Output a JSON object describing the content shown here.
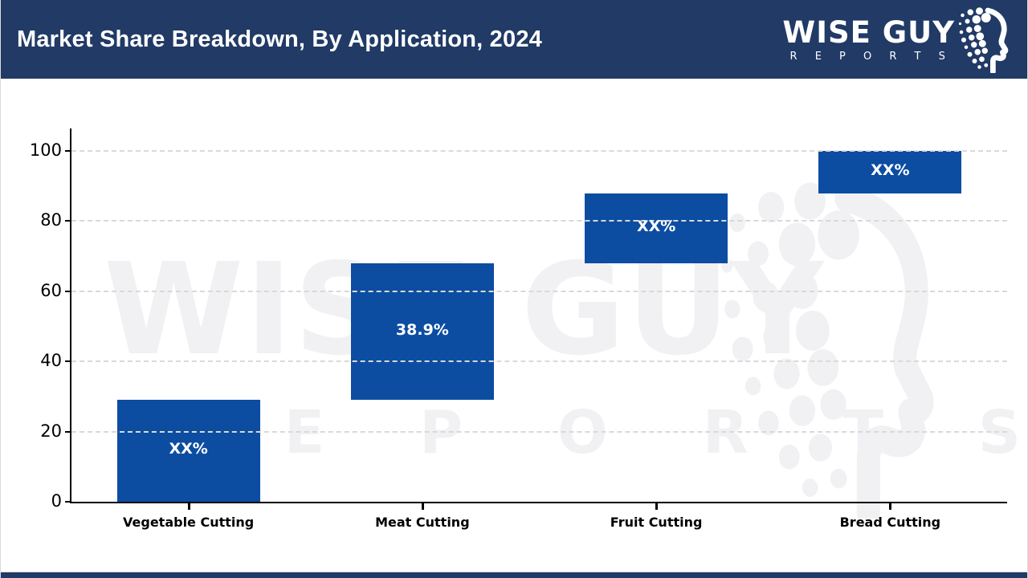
{
  "header": {
    "title": "Market Share Breakdown, By Application, 2024",
    "bg_color": "#213a66",
    "logo": {
      "line1": "WISE GUY",
      "line2": "R E P O R T S"
    }
  },
  "watermark": {
    "line1": "WISE GUY",
    "line2": "R E P O R T S"
  },
  "chart_data": {
    "type": "bar",
    "subtype": "floating-waterfall",
    "title": "Market Share Breakdown, By Application, 2024",
    "categories": [
      "Vegetable Cutting",
      "Meat Cutting",
      "Fruit Cutting",
      "Bread Cutting"
    ],
    "segments": [
      {
        "category": "Vegetable Cutting",
        "start": 0,
        "end": 29.1,
        "label": "XX%"
      },
      {
        "category": "Meat Cutting",
        "start": 29.1,
        "end": 68.0,
        "label": "38.9%"
      },
      {
        "category": "Fruit Cutting",
        "start": 68.0,
        "end": 87.8,
        "label": "XX%"
      },
      {
        "category": "Bread Cutting",
        "start": 87.8,
        "end": 100.0,
        "label": "XX%"
      }
    ],
    "yticks": [
      0,
      20,
      40,
      60,
      80,
      100
    ],
    "ylim": [
      0,
      106
    ],
    "xlabel": "",
    "ylabel": "",
    "bar_color": "#0c4da2",
    "grid": true,
    "grid_style": "dashed",
    "grid_color": "#d9d9d9",
    "legend": false
  }
}
